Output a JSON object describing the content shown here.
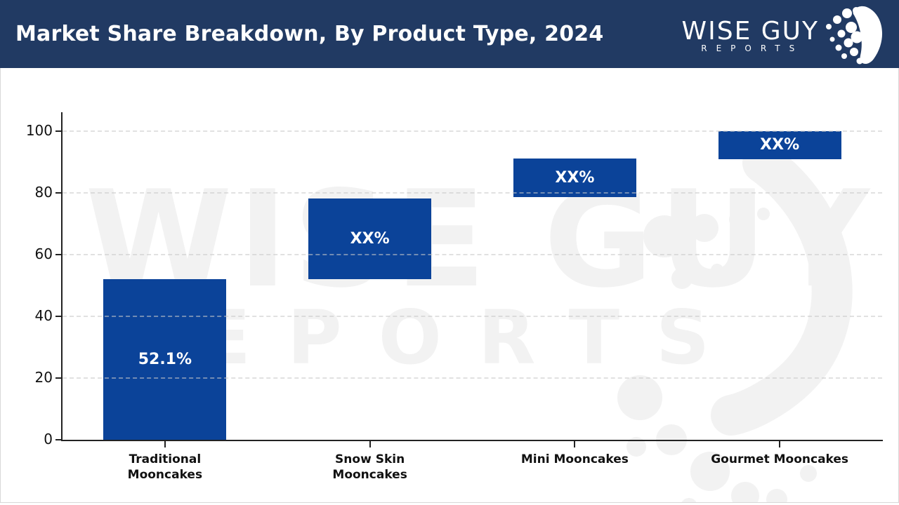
{
  "header": {
    "title": "Market Share Breakdown, By Product Type, 2024",
    "logo": {
      "line1": "WISE GUY",
      "line2": "REPORTS"
    }
  },
  "watermark": {
    "line1": "WISE GUY",
    "line2": "REPORTS"
  },
  "colors": {
    "header_bg": "#213a63",
    "bar": "#0b4399",
    "bar_label": "#ffffff",
    "grid": "#c9c9c9",
    "axis": "#222222",
    "watermark": "#f2f2f2",
    "text": "#111111"
  },
  "chart_data": {
    "type": "bar",
    "subtype": "waterfall",
    "title": "Market Share Breakdown, By Product Type, 2024",
    "xlabel": "",
    "ylabel": "",
    "categories": [
      "Traditional Mooncakes",
      "Snow Skin Mooncakes",
      "Mini Mooncakes",
      "Gourmet Mooncakes"
    ],
    "category_labels": [
      [
        "Traditional",
        "Mooncakes"
      ],
      [
        "Snow Skin",
        "Mooncakes"
      ],
      [
        "Mini Mooncakes"
      ],
      [
        "Gourmet Mooncakes"
      ]
    ],
    "segments": [
      {
        "label": "52.1%",
        "start": 0,
        "end": 52.1
      },
      {
        "label": "XX%",
        "start": 52.1,
        "end": 78.3
      },
      {
        "label": "XX%",
        "start": 78.6,
        "end": 91.1
      },
      {
        "label": "XX%",
        "start": 91.0,
        "end": 100
      }
    ],
    "yticks": [
      0,
      20,
      40,
      60,
      80,
      100
    ],
    "ylim": [
      0,
      100
    ],
    "grid": "horizontal-dashed",
    "legend": "none"
  }
}
